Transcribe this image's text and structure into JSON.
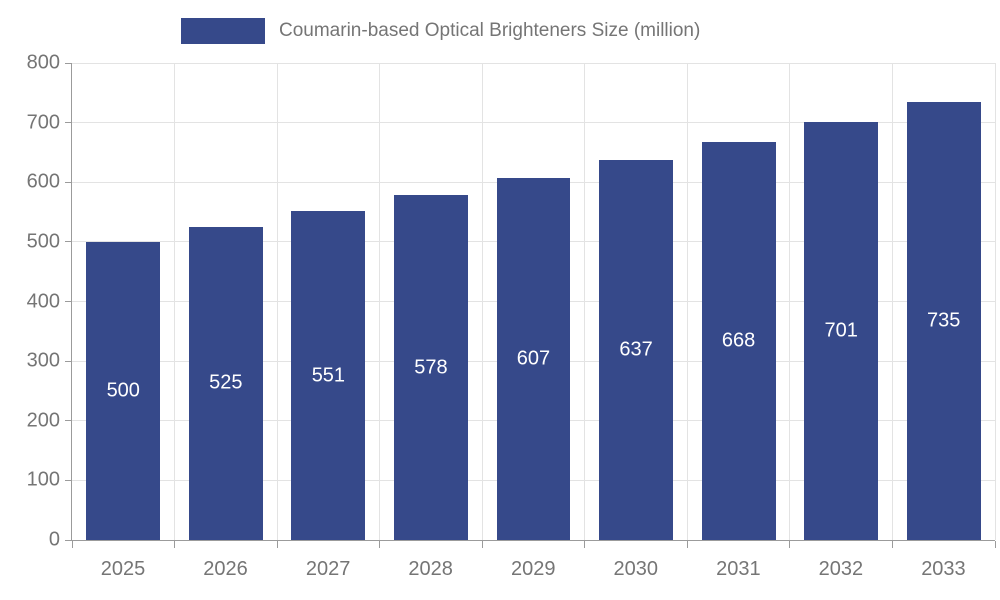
{
  "legend": {
    "label": "Coumarin-based Optical Brighteners Size (million)"
  },
  "chart_data": {
    "type": "bar",
    "title": "Coumarin-based Optical Brighteners Size (million)",
    "categories": [
      "2025",
      "2026",
      "2027",
      "2028",
      "2029",
      "2030",
      "2031",
      "2032",
      "2033"
    ],
    "values": [
      500,
      525,
      551,
      578,
      607,
      637,
      668,
      701,
      735
    ],
    "xlabel": "",
    "ylabel": "",
    "ylim": [
      0,
      800
    ],
    "ytick_step": 100,
    "ytick_labels": [
      "0",
      "100",
      "200",
      "300",
      "400",
      "500",
      "600",
      "700",
      "800"
    ],
    "grid": true,
    "legend_position": "top",
    "bar_width_fraction": 0.72,
    "colors": {
      "bar": "#36498a",
      "bar_label": "#ffffff",
      "axis_line": "#9b9b9b",
      "gridline": "#e3e3e3",
      "axis_text": "#757575",
      "legend_text": "#757575"
    }
  }
}
